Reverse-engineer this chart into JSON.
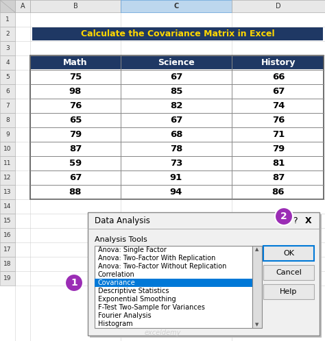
{
  "title": "Calculate the Covariance Matrix in Excel",
  "title_bg": "#1F3864",
  "title_color": "#FFD700",
  "headers": [
    "Math",
    "Science",
    "History"
  ],
  "header_bg": "#1F3864",
  "header_color": "#FFFFFF",
  "data": [
    [
      75,
      67,
      66
    ],
    [
      98,
      85,
      67
    ],
    [
      76,
      82,
      74
    ],
    [
      65,
      67,
      76
    ],
    [
      79,
      68,
      71
    ],
    [
      87,
      78,
      79
    ],
    [
      59,
      73,
      81
    ],
    [
      67,
      91,
      87
    ],
    [
      88,
      94,
      86
    ]
  ],
  "row_bg": "#FFFFFF",
  "row_color": "#000000",
  "grid_color": "#CCCCCC",
  "excel_bg": "#FFFFFF",
  "col_header_bg": "#E8E8E8",
  "col_letters": [
    "A",
    "B",
    "C",
    "D"
  ],
  "row_numbers": [
    "1",
    "2",
    "3",
    "4",
    "5",
    "6",
    "7",
    "8",
    "9",
    "10",
    "11",
    "12",
    "13",
    "14",
    "15",
    "16",
    "17",
    "18",
    "19"
  ],
  "dialog_title": "Data Analysis",
  "analysis_label": "Analysis Tools",
  "tools": [
    "Anova: Single Factor",
    "Anova: Two-Factor With Replication",
    "Anova: Two-Factor Without Replication",
    "Correlation",
    "Covariance",
    "Descriptive Statistics",
    "Exponential Smoothing",
    "F-Test Two-Sample for Variances",
    "Fourier Analysis",
    "Histogram"
  ],
  "selected_tool": "Covariance",
  "selected_tool_bg": "#0078D7",
  "selected_tool_color": "#FFFFFF",
  "dialog_bg": "#F0F0F0",
  "btn_ok": "OK",
  "btn_cancel": "Cancel",
  "btn_help": "Help",
  "circle_color": "#9B2DB5",
  "watermark": "exceldemy"
}
